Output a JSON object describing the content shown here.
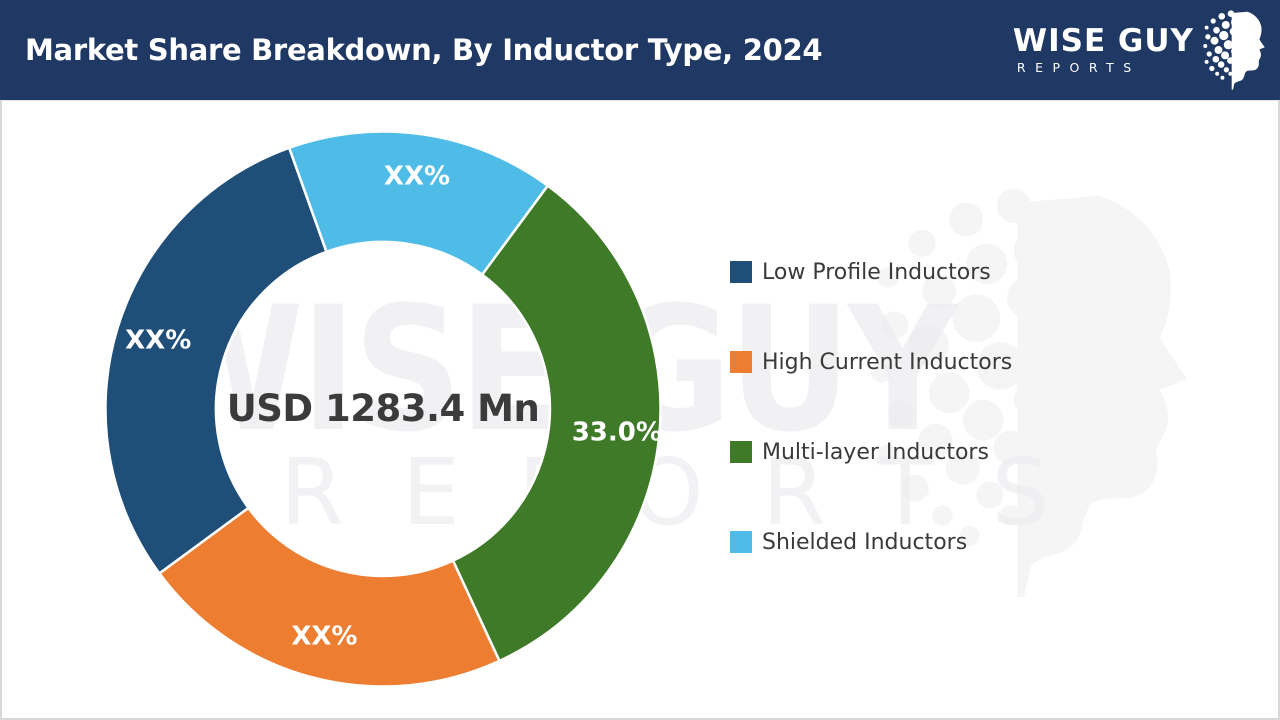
{
  "header": {
    "title": "Market Share Breakdown, By Inductor Type, 2024",
    "logo": {
      "brand_line1": "WISE GUY",
      "brand_line2": "REPORTS"
    }
  },
  "chart_data": {
    "type": "pie",
    "variant": "donut",
    "title": "Market Share Breakdown, By Inductor Type, 2024",
    "center_label": "USD 1283.4 Mn",
    "start_angle_deg": 36.4,
    "slices": [
      {
        "name": "Multi-layer Inductors",
        "value_pct": 33.0,
        "label": "33.0%",
        "color": "#3F7A28"
      },
      {
        "name": "High Current Inductors",
        "value_pct": 21.8,
        "label": "XX%",
        "color": "#ED7D31"
      },
      {
        "name": "Low Profile Inductors",
        "value_pct": 29.6,
        "label": "XX%",
        "color": "#1F4E79"
      },
      {
        "name": "Shielded Inductors",
        "value_pct": 15.6,
        "label": "XX%",
        "color": "#4FBCE8"
      }
    ],
    "legend": {
      "position": "right",
      "items": [
        {
          "label": "Low Profile Inductors",
          "color": "#1F4E79"
        },
        {
          "label": "High Current Inductors",
          "color": "#ED7D31"
        },
        {
          "label": "Multi-layer Inductors",
          "color": "#3F7A28"
        },
        {
          "label": "Shielded Inductors",
          "color": "#4FBCE8"
        }
      ]
    }
  },
  "watermark": {
    "line1": "WISE GUY",
    "line2": "REPORTS"
  },
  "colors": {
    "header_bg": "#1F3864",
    "panel_bg": "#FFFFFF",
    "label_text": "#FFFFFF",
    "center_text": "#3B3B3B"
  }
}
